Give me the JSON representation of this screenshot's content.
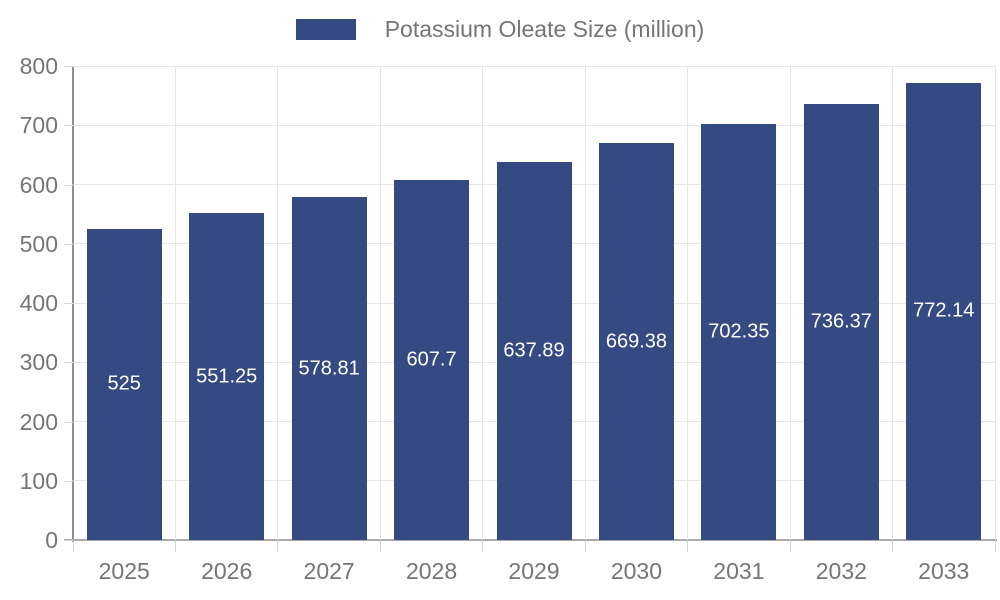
{
  "legend": {
    "label": "Potassium Oleate Size (million)",
    "swatch_color": "#354a82"
  },
  "colors": {
    "bar": "#354a82",
    "grid": "#e6e6e6",
    "y_axis_line": "#8f8f8f",
    "x_axis_line": "#ababab",
    "tick": "#d6d6d6",
    "axis_text": "#757575",
    "value_label_text": "#ffffff"
  },
  "chart_data": {
    "type": "bar",
    "title": "",
    "xlabel": "",
    "ylabel": "",
    "categories": [
      "2025",
      "2026",
      "2027",
      "2028",
      "2029",
      "2030",
      "2031",
      "2032",
      "2033"
    ],
    "series": [
      {
        "name": "Potassium Oleate Size (million)",
        "color": "#354a82",
        "values": [
          525,
          551.25,
          578.81,
          607.7,
          637.89,
          669.38,
          702.35,
          736.37,
          772.14
        ]
      }
    ],
    "value_labels": [
      "525",
      "551.25",
      "578.81",
      "607.7",
      "637.89",
      "669.38",
      "702.35",
      "736.37",
      "772.14"
    ],
    "ylim": [
      0,
      800
    ],
    "yticks": [
      "0",
      "100",
      "200",
      "300",
      "400",
      "500",
      "600",
      "700",
      "800"
    ],
    "grid": true,
    "legend_position": "top"
  }
}
